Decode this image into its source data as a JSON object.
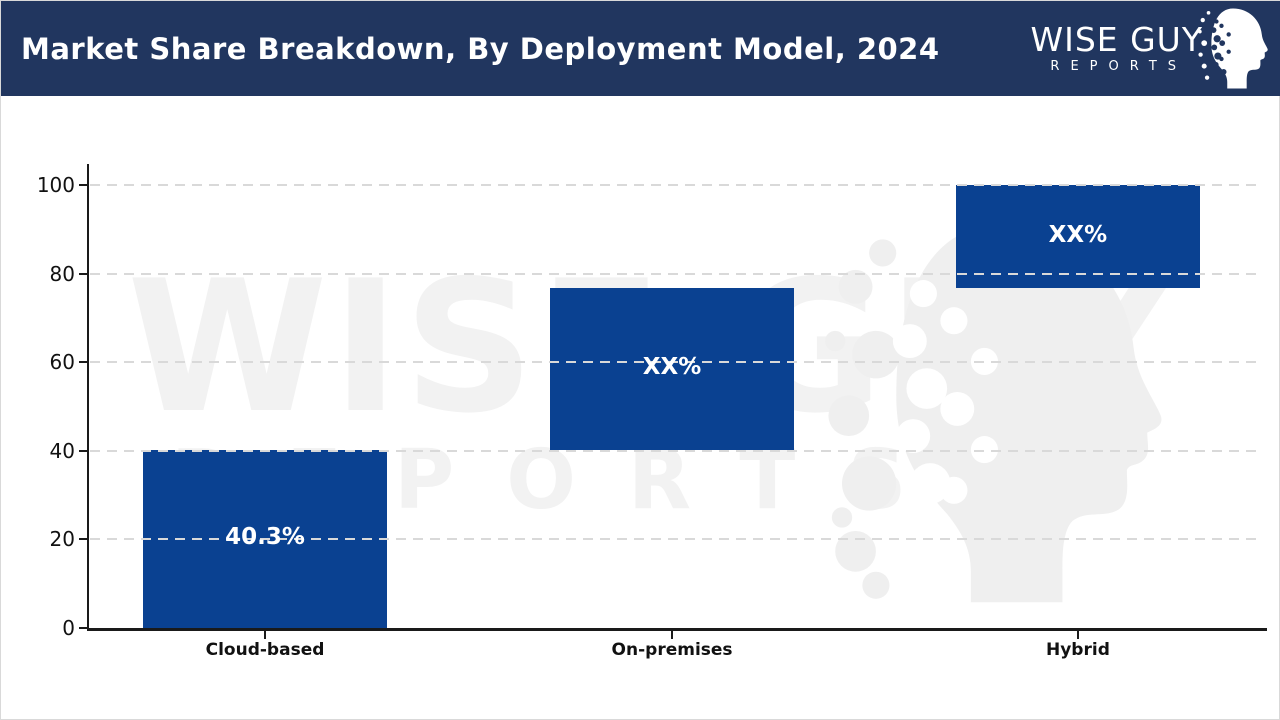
{
  "header": {
    "title": "Market Share Breakdown, By Deployment Model, 2024",
    "background_color": "#21365f",
    "logo": {
      "line1": "WISE GUY",
      "line2": "REPORTS"
    }
  },
  "watermark": {
    "line1": "WISE GUY",
    "line2": "REPORTS"
  },
  "chart_data": {
    "type": "bar",
    "subtype": "floating-waterfall",
    "title": "Market Share Breakdown, By Deployment Model, 2024",
    "categories": [
      "Cloud-based",
      "On-premises",
      "Hybrid"
    ],
    "bars": [
      {
        "category": "Cloud-based",
        "start": 0,
        "end": 40.3,
        "label": "40.3%"
      },
      {
        "category": "On-premises",
        "start": 40.3,
        "end": 76.8,
        "label": "XX%"
      },
      {
        "category": "Hybrid",
        "start": 76.8,
        "end": 100,
        "label": "XX%"
      }
    ],
    "yticks": [
      0,
      20,
      40,
      60,
      80,
      100
    ],
    "ylim": [
      0,
      104.5
    ],
    "xlabel": "",
    "ylabel": "",
    "bar_color": "#0a4191",
    "bar_label_color": "#ffffff",
    "axis_color": "#1a1a1a",
    "grid": {
      "horizontal": true,
      "style": "dashed",
      "color": "#d9d9d9",
      "above_bars": true
    },
    "legend": "none"
  }
}
